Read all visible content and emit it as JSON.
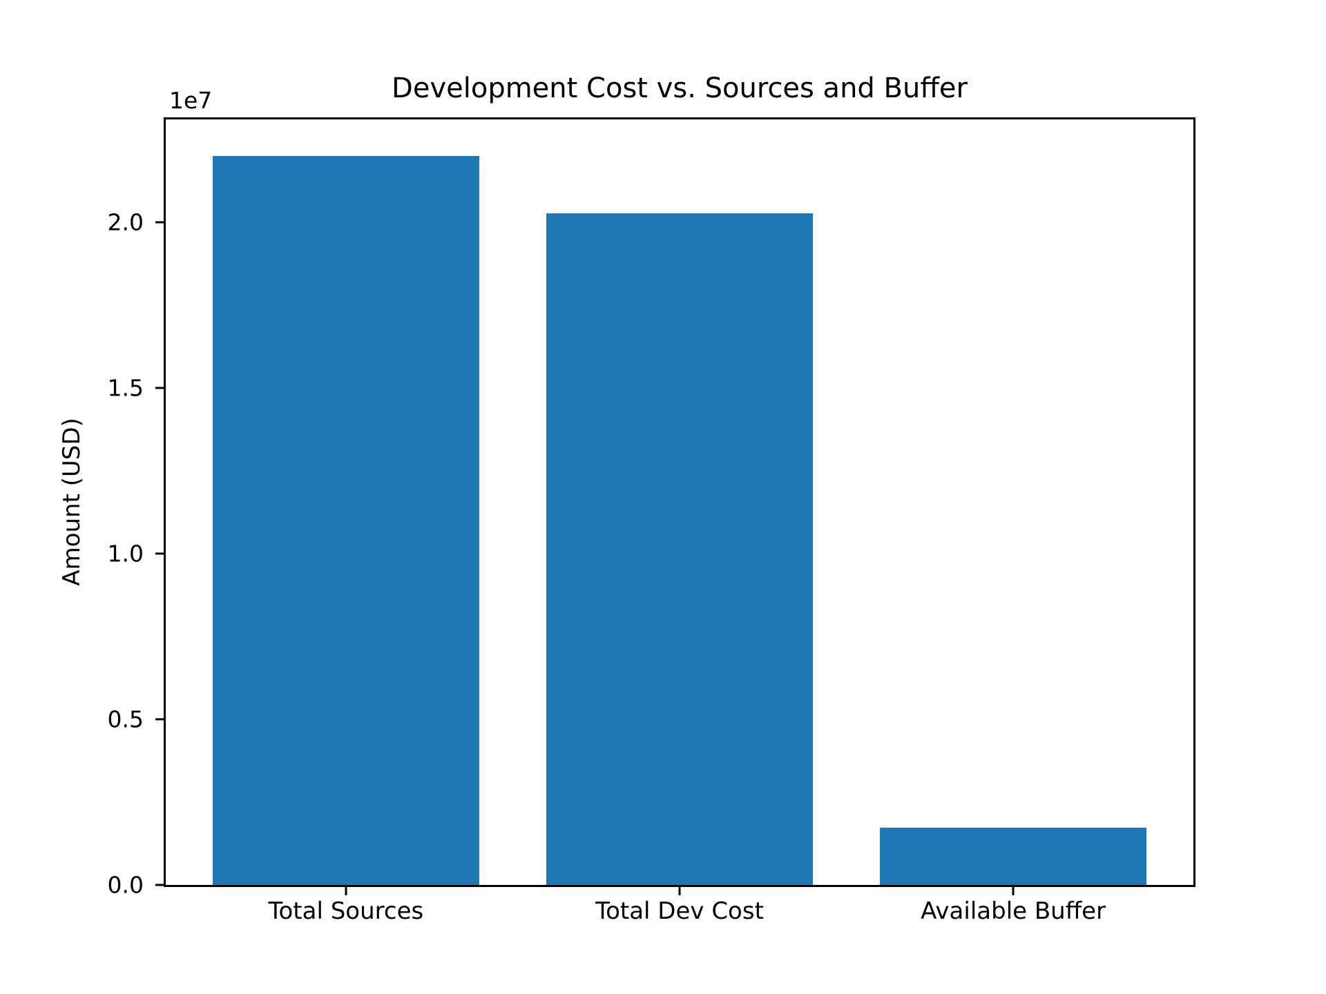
{
  "chart_data": {
    "type": "bar",
    "title": "Development Cost vs. Sources and Buffer",
    "ylabel": "Amount (USD)",
    "xlabel": "",
    "offset_text": "1e7",
    "categories": [
      "Total Sources",
      "Total Dev Cost",
      "Available Buffer"
    ],
    "values": [
      22000000,
      20270000,
      1730000
    ],
    "bar_color": "#1f77b4",
    "bar_width": 0.8,
    "x_positions": [
      0,
      1,
      2
    ],
    "xlim": [
      -0.54,
      2.54
    ],
    "ylim": [
      0,
      23100000
    ],
    "yticks": [
      0,
      5000000,
      10000000,
      15000000,
      20000000
    ],
    "ytick_labels": [
      "0.0",
      "0.5",
      "1.0",
      "1.5",
      "2.0"
    ],
    "grid": false,
    "legend": null
  }
}
